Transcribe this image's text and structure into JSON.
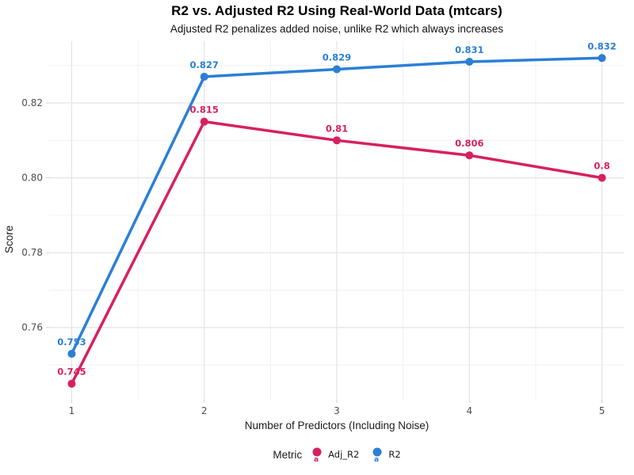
{
  "title": "R2 vs. Adjusted R2 Using Real-World Data (mtcars)",
  "subtitle": "Adjusted R2 penalizes added noise, unlike R2 which always increases",
  "axes": {
    "x_label": "Number of Predictors (Including Noise)",
    "y_label": "Score"
  },
  "legend": {
    "title": "Metric",
    "key_glyph": "a",
    "position": "bottom",
    "entries": [
      {
        "label": "Adj_R2",
        "color": "#d6215f"
      },
      {
        "label": "R2",
        "color": "#2b7fd6"
      }
    ]
  },
  "colors": {
    "background": "#ffffff",
    "grid_major": "#e4e4e4",
    "grid_minor": "#f1f1f1",
    "tick_mark": "#cfcfcf",
    "tick_text": "#4d4d4d",
    "adj_r2": "#d6215f",
    "r2": "#2b7fd6"
  },
  "chart_data": {
    "type": "line",
    "title": "R2 vs. Adjusted R2 Using Real-World Data (mtcars)",
    "subtitle": "Adjusted R2 penalizes added noise, unlike R2 which always increases",
    "xlabel": "Number of Predictors (Including Noise)",
    "ylabel": "Score",
    "x": [
      1,
      2,
      3,
      4,
      5
    ],
    "series": [
      {
        "name": "Adj_R2",
        "color": "#d6215f",
        "values": [
          0.745,
          0.815,
          0.81,
          0.806,
          0.8
        ],
        "labels": [
          "0.745",
          "0.815",
          "0.81",
          "0.806",
          "0.8"
        ]
      },
      {
        "name": "R2",
        "color": "#2b7fd6",
        "values": [
          0.753,
          0.827,
          0.829,
          0.831,
          0.832
        ],
        "labels": [
          "0.753",
          "0.827",
          "0.829",
          "0.831",
          "0.832"
        ]
      }
    ],
    "x_ticks": [
      1,
      2,
      3,
      4,
      5
    ],
    "x_tick_labels": [
      "1",
      "2",
      "3",
      "4",
      "5"
    ],
    "x_minor": [
      1.5,
      2.5,
      3.5,
      4.5
    ],
    "y_ticks": [
      0.76,
      0.78,
      0.8,
      0.82
    ],
    "y_tick_labels": [
      "0.76",
      "0.78",
      "0.80",
      "0.82"
    ],
    "y_minor": [
      0.75,
      0.77,
      0.79,
      0.81,
      0.83
    ],
    "xlim": [
      0.83,
      5.17
    ],
    "ylim": [
      0.7407,
      0.8365
    ],
    "grid": true,
    "legend_position": "bottom"
  }
}
